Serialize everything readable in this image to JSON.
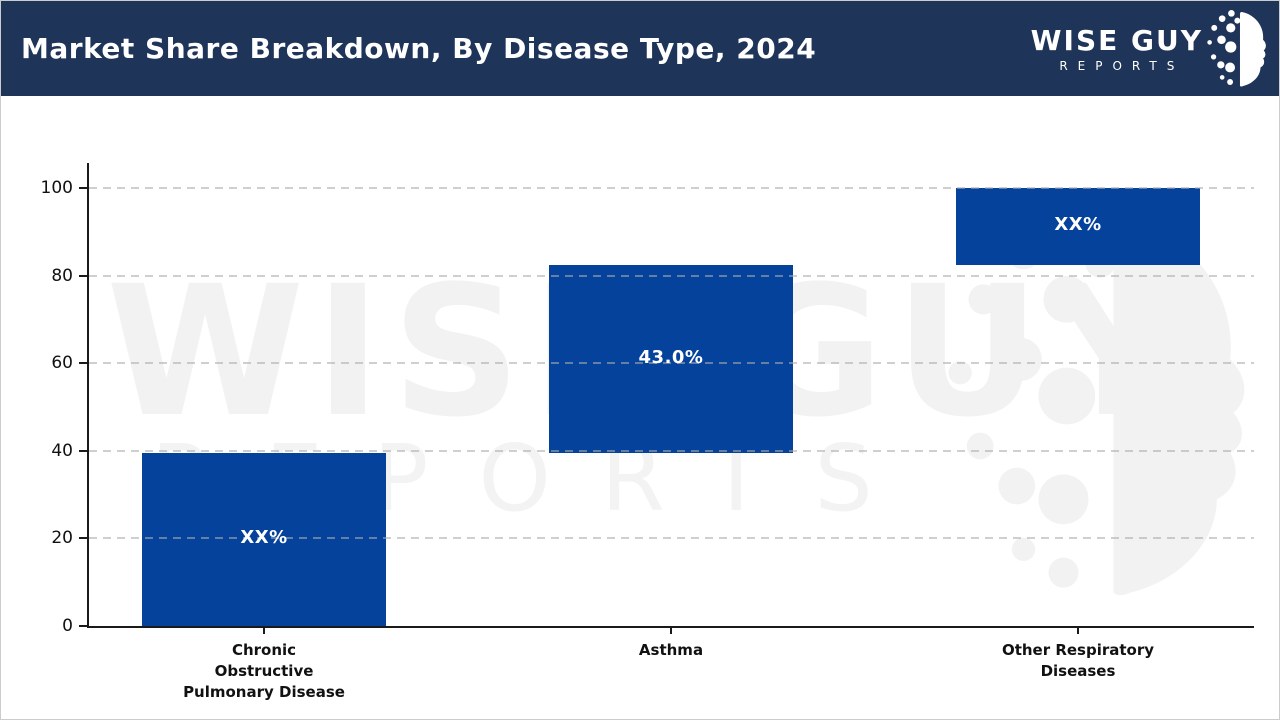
{
  "header": {
    "title": "Market Share Breakdown, By Disease Type, 2024",
    "background": "#1f3459",
    "logo": {
      "line1": "WISE GUY",
      "line2": "REPORTS"
    }
  },
  "watermark": {
    "line1": "WISE GUY",
    "line2": "REPORTS"
  },
  "chart_data": {
    "type": "bar",
    "subtype": "waterfall-floating-bars",
    "title": "",
    "xlabel": "",
    "ylabel": "",
    "ylim": [
      0,
      100
    ],
    "grid": true,
    "legend": null,
    "bar_color": "#05429b",
    "yticks": [
      0,
      20,
      40,
      60,
      80,
      100
    ],
    "ytick_labels": [
      "0",
      "20",
      "40",
      "60",
      "80",
      "100"
    ],
    "categories": [
      "Chronic Obstructive Pulmonary Disease",
      "Asthma",
      "Other Respiratory Diseases"
    ],
    "categories_lines": [
      [
        "Chronic",
        "Obstructive",
        "Pulmonary Disease"
      ],
      [
        "Asthma"
      ],
      [
        "Other Respiratory",
        "Diseases"
      ]
    ],
    "segments": [
      {
        "category": "Chronic Obstructive Pulmonary Disease",
        "start": 0,
        "end": 39.5,
        "display": "XX%"
      },
      {
        "category": "Asthma",
        "start": 39.5,
        "end": 82.5,
        "display": "43.0%"
      },
      {
        "category": "Other Respiratory Diseases",
        "start": 82.5,
        "end": 100,
        "display": "XX%"
      }
    ]
  }
}
